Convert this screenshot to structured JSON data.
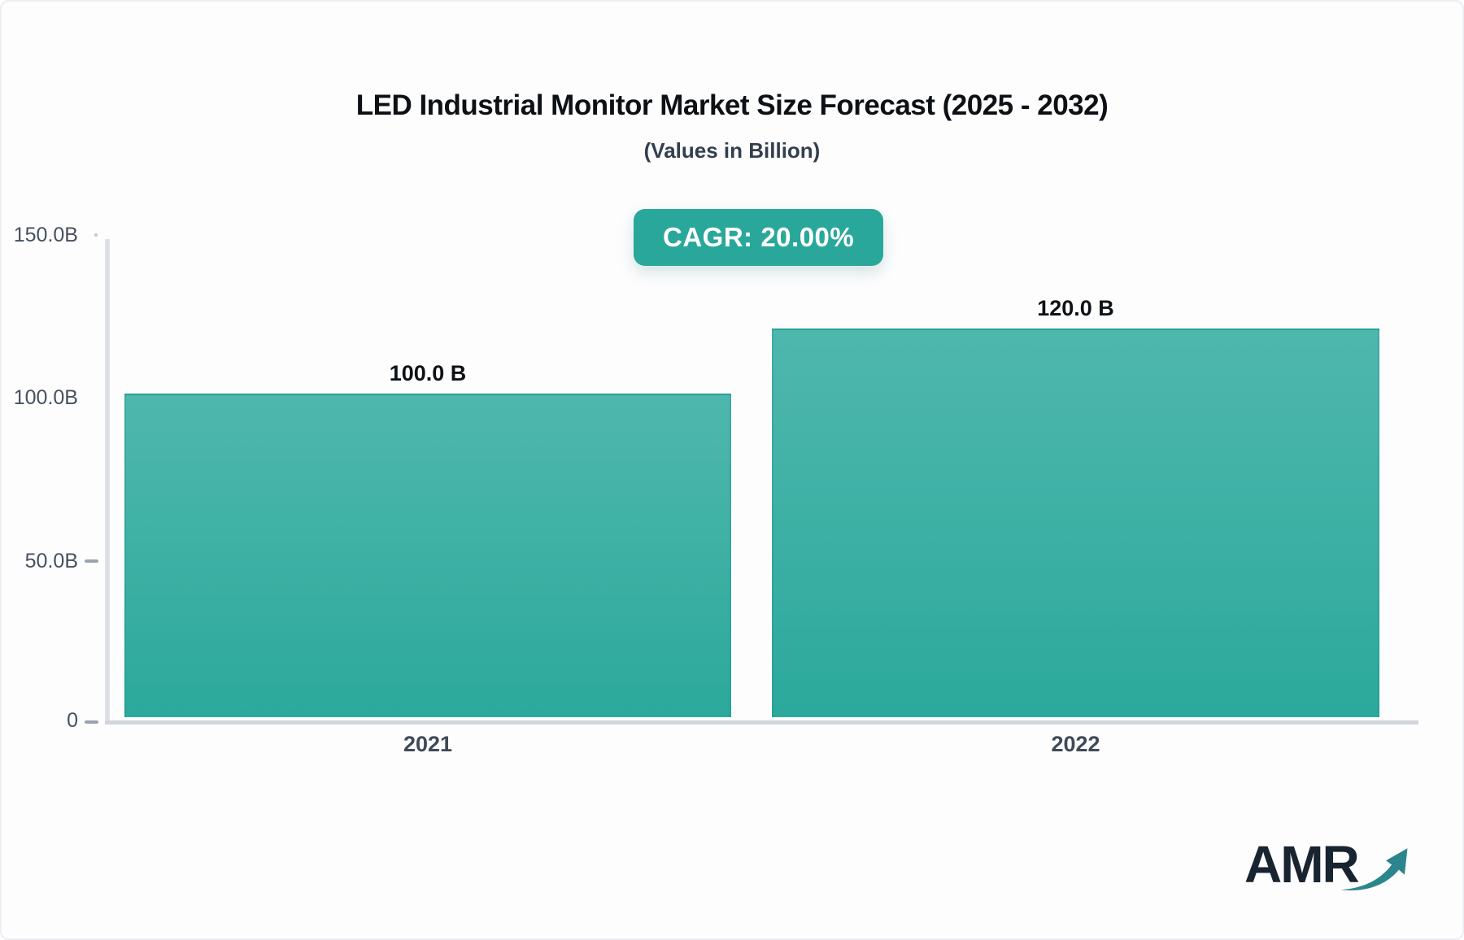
{
  "header": {
    "title": "LED Industrial Monitor Market Size Forecast (2025 - 2032)",
    "subtitle": "(Values in Billion)"
  },
  "cagr_badge": {
    "label": "CAGR: 20.00%",
    "background_color": "#2aa79b",
    "text_color": "#ffffff"
  },
  "chart_data": {
    "type": "bar",
    "title": "LED Industrial Monitor Market Size Forecast (2025 - 2032)",
    "subtitle": "(Values in Billion)",
    "unit": "Billion",
    "categories": [
      "2021",
      "2022"
    ],
    "values": [
      100.0,
      120.0
    ],
    "data_labels": [
      "100.0 B",
      "120.0 B"
    ],
    "cagr_percent": 20.0,
    "ylim": [
      0,
      150
    ],
    "ytick_values": [
      0,
      50,
      100,
      150
    ],
    "ytick_labels": [
      "0",
      "50.0B",
      "100.0B",
      "150.0B"
    ],
    "xlabel": "",
    "ylabel": "",
    "grid": false,
    "legend": false,
    "bar_color_top": "#4fb7ad",
    "bar_color_bottom": "#2ba99b"
  },
  "logo": {
    "text": "AMR",
    "text_color": "#182430",
    "arrow_color": "#2b858d"
  }
}
